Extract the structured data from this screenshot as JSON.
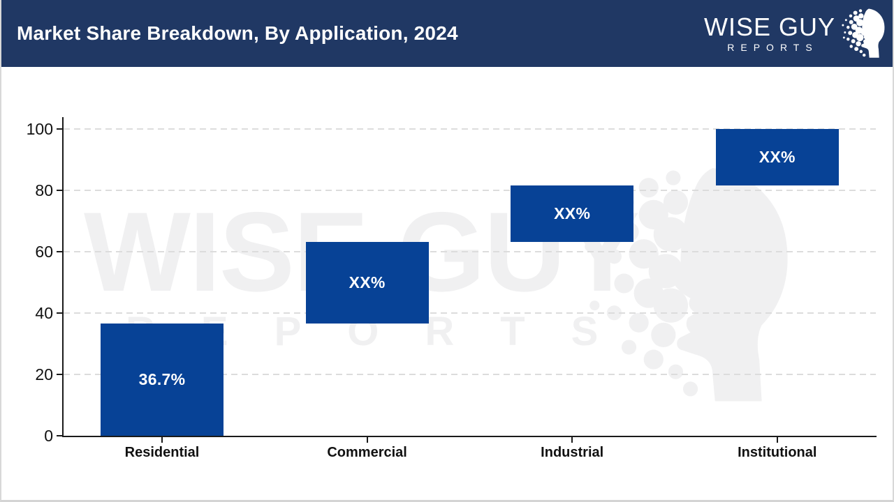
{
  "header": {
    "title": "Market Share Breakdown, By Application, 2024",
    "logo": {
      "name": "WISE GUY",
      "sub": "REPORTS"
    }
  },
  "watermark": {
    "name": "WISE GUY",
    "sub": "REPORTS"
  },
  "chart_data": {
    "type": "bar",
    "variant": "waterfall-stacked-percentage",
    "title": "Market Share Breakdown, By Application, 2024",
    "categories": [
      "Residential",
      "Commercial",
      "Industrial",
      "Institutional"
    ],
    "segments": [
      {
        "category": "Residential",
        "start": 0,
        "end": 36.7,
        "label": "36.7%"
      },
      {
        "category": "Commercial",
        "start": 36.7,
        "end": 63.2,
        "label": "XX%"
      },
      {
        "category": "Industrial",
        "start": 63.2,
        "end": 81.6,
        "label": "XX%"
      },
      {
        "category": "Institutional",
        "start": 81.6,
        "end": 100,
        "label": "XX%"
      }
    ],
    "xlabel": "",
    "ylabel": "",
    "ylim": [
      0,
      104
    ],
    "yticks": [
      0,
      20,
      40,
      60,
      80,
      100
    ],
    "grid": "horizontal-dashed",
    "legend": "none",
    "bar_color": "#074296",
    "bar_label_color": "#ffffff"
  },
  "colors": {
    "header_bg": "#203864",
    "bar": "#074296",
    "grid": "#dcdcdc",
    "axis": "#1a1a1a",
    "watermark": "#f0f0f1"
  }
}
